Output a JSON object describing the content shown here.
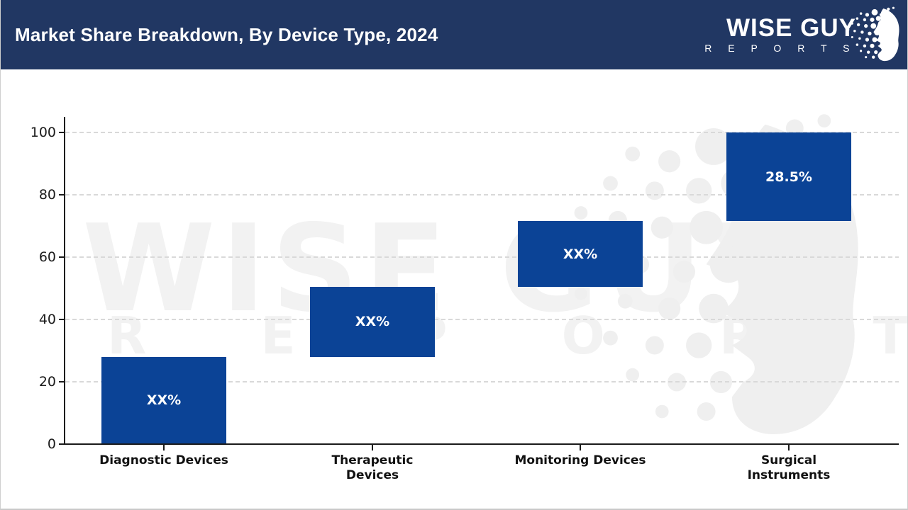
{
  "header": {
    "title": "Market Share Breakdown, By Device Type, 2024",
    "logo": {
      "name": "WISE GUY",
      "subtitle": "R E P O R T S"
    }
  },
  "watermark": {
    "line1": "WISE GUY",
    "line2": "R E P O R T S"
  },
  "colors": {
    "header_bg": "#213763",
    "bar": "#0b4396",
    "bar_label": "#ffffff",
    "grid": "#d9d9d9",
    "axis": "#1a1a1a",
    "watermark": "#f2f2f2"
  },
  "chart_data": {
    "type": "bar",
    "subtype": "waterfall",
    "title": "Market Share Breakdown, By Device Type, 2024",
    "categories": [
      "Diagnostic Devices",
      "Therapeutic Devices",
      "Monitoring Devices",
      "Surgical Instruments"
    ],
    "category_lines": [
      [
        "Diagnostic Devices"
      ],
      [
        "Therapeutic",
        "Devices"
      ],
      [
        "Monitoring Devices"
      ],
      [
        "Surgical",
        "Instruments"
      ]
    ],
    "segments": [
      {
        "category": "Diagnostic Devices",
        "start": 0,
        "end": 28,
        "label": "XX%"
      },
      {
        "category": "Therapeutic Devices",
        "start": 28,
        "end": 50.5,
        "label": "XX%"
      },
      {
        "category": "Monitoring Devices",
        "start": 50.5,
        "end": 71.5,
        "label": "XX%"
      },
      {
        "category": "Surgical Instruments",
        "start": 71.5,
        "end": 100,
        "label": "28.5%"
      }
    ],
    "yticks": [
      0,
      20,
      40,
      60,
      80,
      100
    ],
    "ylim": [
      0,
      100
    ],
    "xlabel": "",
    "ylabel": "",
    "grid": "dashed-horizontal",
    "legend": "none"
  }
}
